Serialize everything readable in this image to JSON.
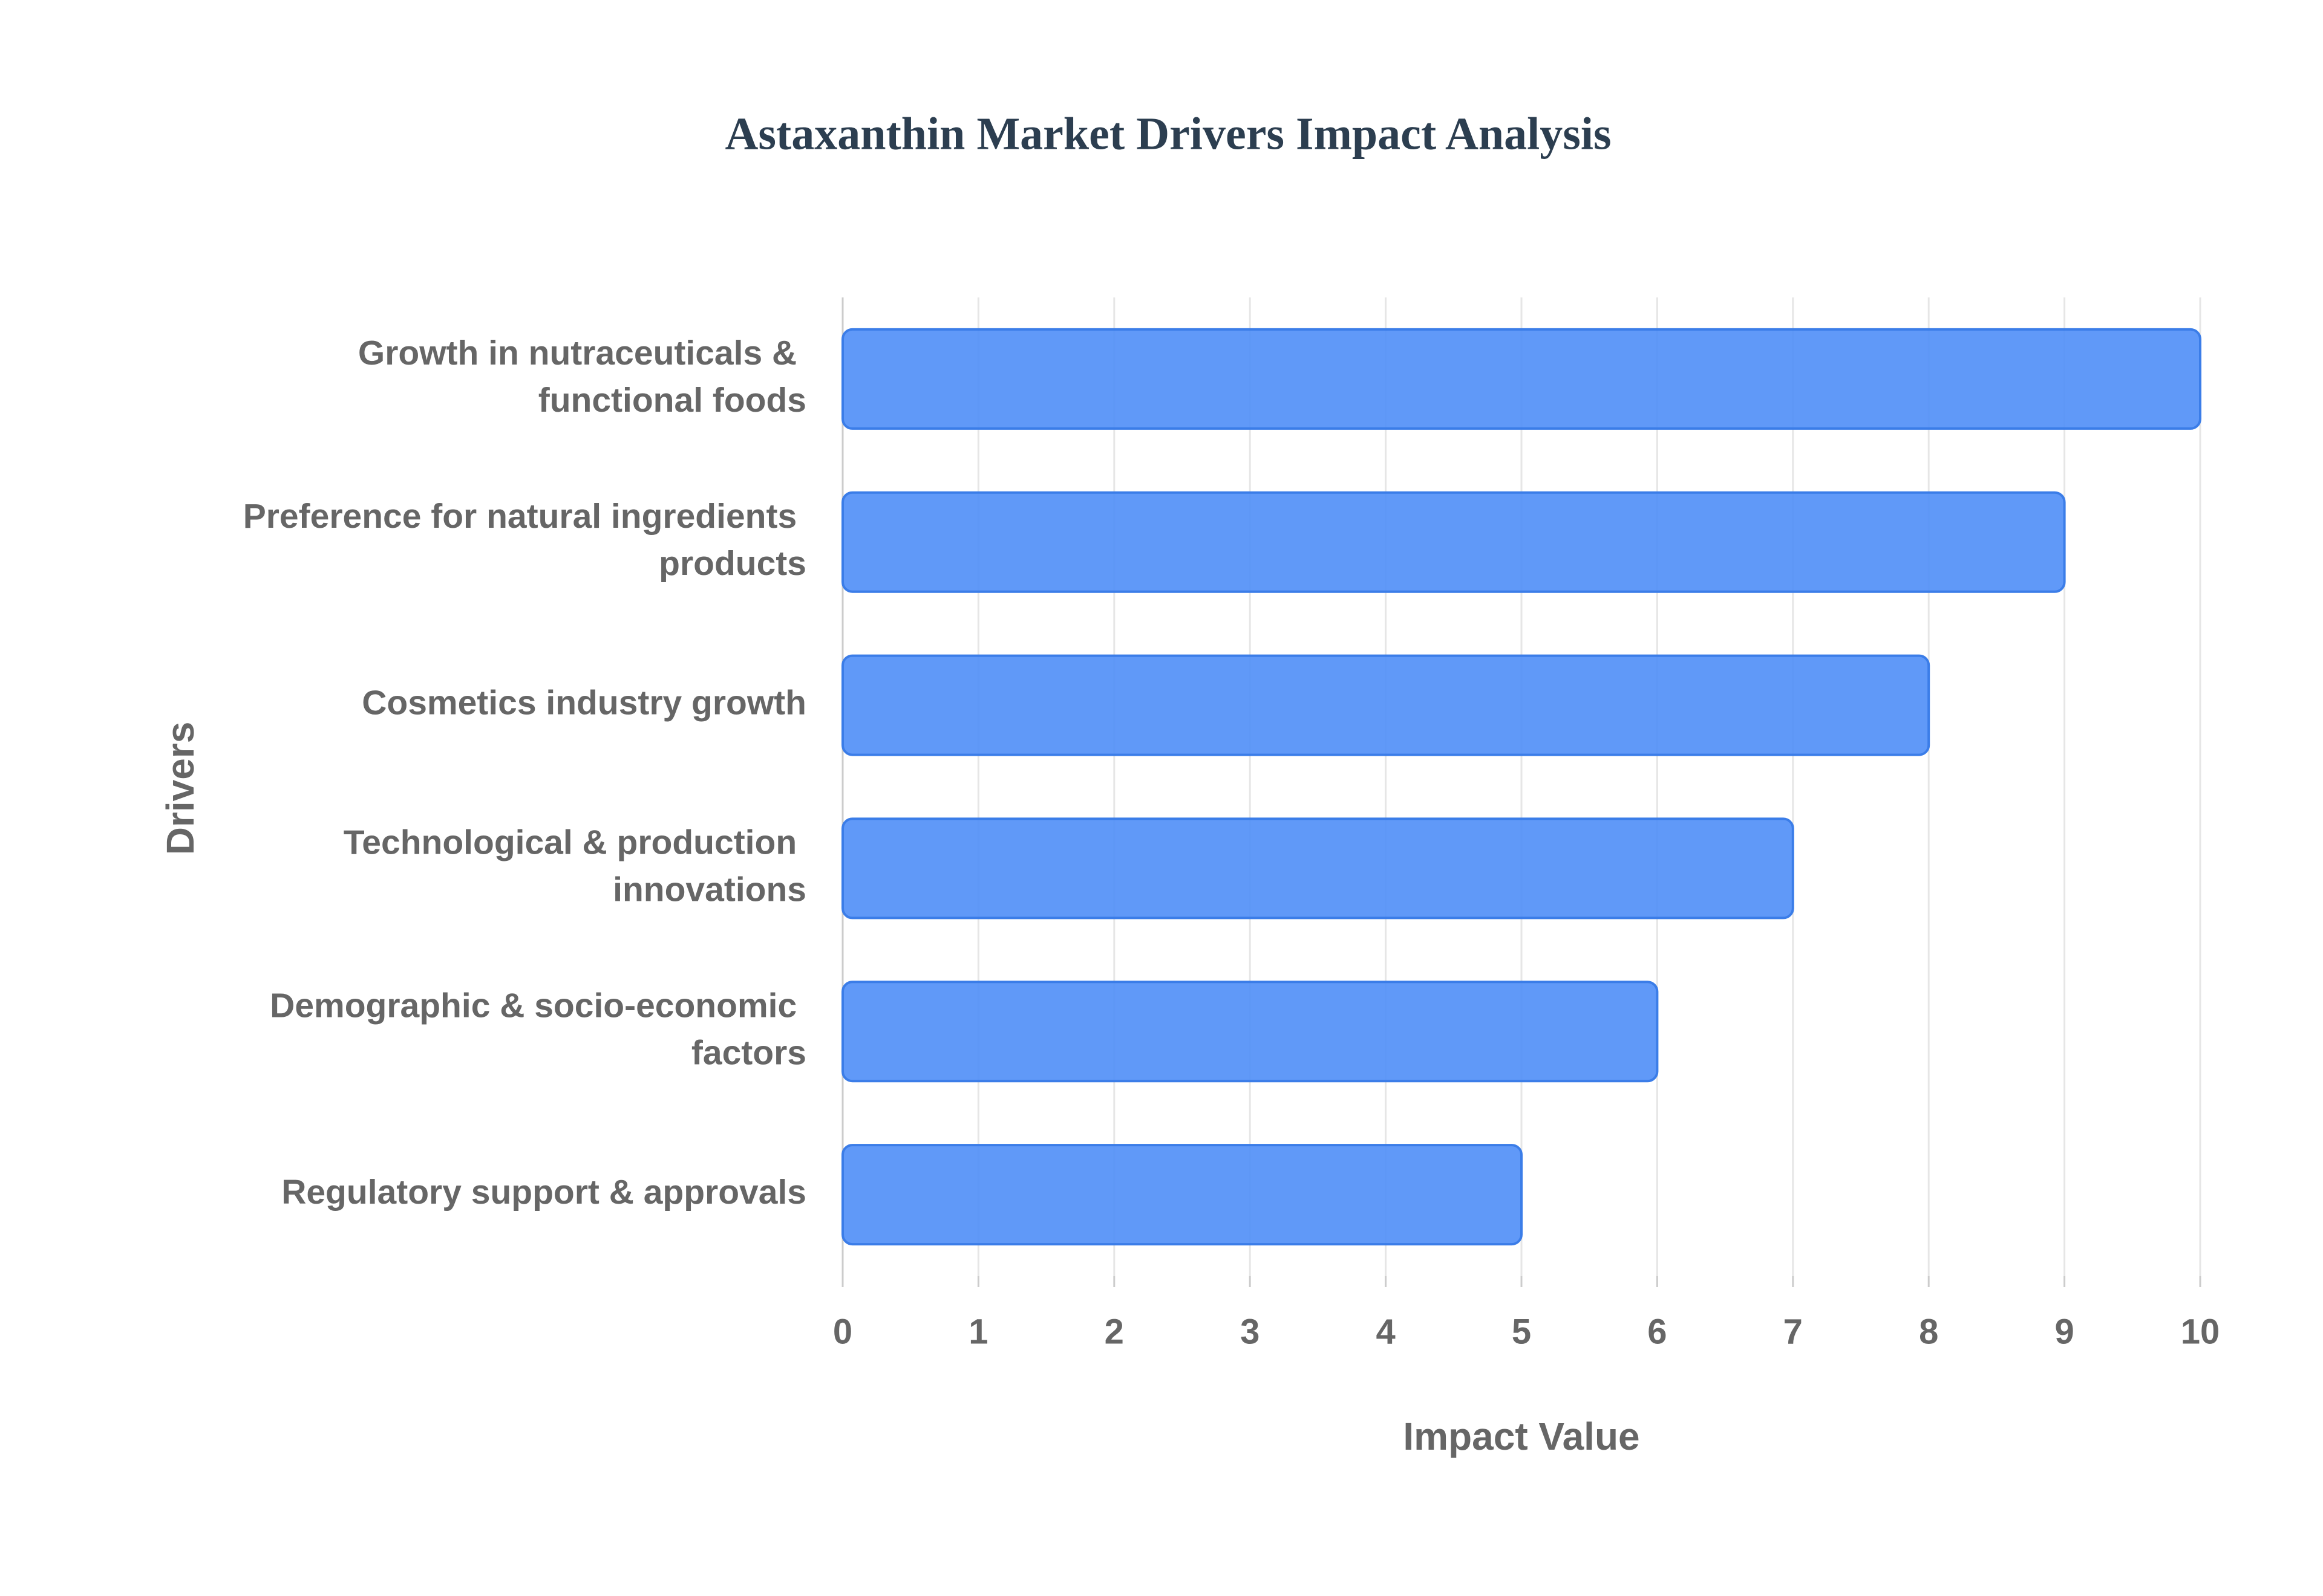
{
  "chart_data": {
    "type": "bar",
    "orientation": "horizontal",
    "title": "Astaxanthin Market Drivers Impact Analysis",
    "x_label": "Impact Value",
    "y_label": "Drivers",
    "categories": [
      "Growth in nutraceuticals & functional foods",
      "Preference for natural ingredients products",
      "Cosmetics industry growth",
      "Technological & production innovations",
      "Demographic & socio-economic factors",
      "Regulatory support & approvals"
    ],
    "values": [
      10,
      9,
      8,
      7,
      6,
      5
    ],
    "color": "#4f8ef7",
    "xlim": [
      0,
      10
    ],
    "xticks": [
      0,
      1,
      2,
      3,
      4,
      5,
      6,
      7,
      8,
      9,
      10
    ],
    "grid": true
  }
}
